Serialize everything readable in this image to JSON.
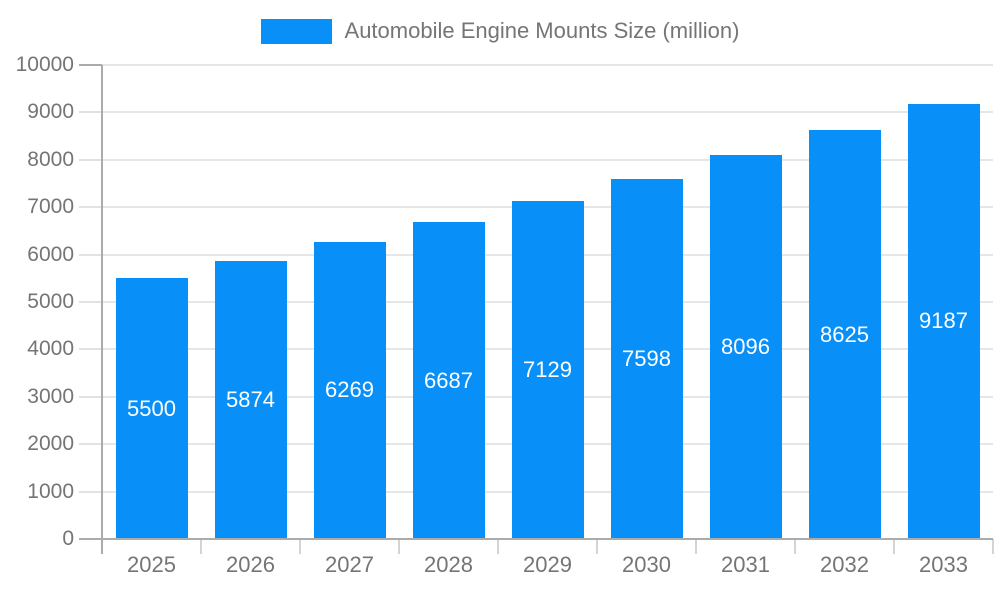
{
  "chart_data": {
    "type": "bar",
    "title": "Automobile Engine Mounts Size (million)",
    "legend": "Automobile Engine Mounts Size (million)",
    "legend_position": "top",
    "categories": [
      "2025",
      "2026",
      "2027",
      "2028",
      "2029",
      "2030",
      "2031",
      "2032",
      "2033"
    ],
    "values": [
      5500,
      5874,
      6269,
      6687,
      7129,
      7598,
      8096,
      8625,
      9187
    ],
    "xlabel": "",
    "ylabel": "",
    "ylim": [
      0,
      10000
    ],
    "ytick_step": 1000,
    "grid": true,
    "value_labels": "centered-in-bar",
    "colors": {
      "bar": "#0890f8",
      "value_label": "#ffffff",
      "axis_text": "#757575",
      "gridline": "#e6e6e6",
      "tick_minor": "#e2e2e2",
      "axis_line": "#ababab"
    }
  }
}
